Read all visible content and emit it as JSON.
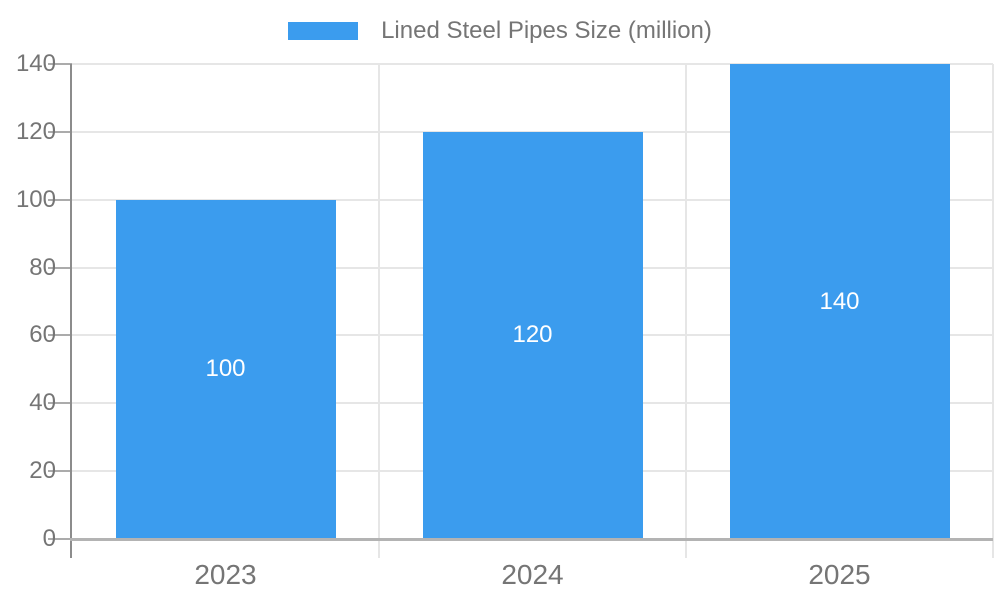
{
  "legend": {
    "label": "Lined Steel Pipes Size (million)"
  },
  "chart_data": {
    "type": "bar",
    "title": "Lined Steel Pipes Size (million)",
    "categories": [
      "2023",
      "2024",
      "2025"
    ],
    "series": [
      {
        "name": "Lined Steel Pipes Size (million)",
        "values": [
          100,
          120,
          140
        ]
      }
    ],
    "bar_value_labels": [
      "100",
      "120",
      "140"
    ],
    "xlabel": "",
    "ylabel": "",
    "ylim": [
      0,
      140
    ],
    "y_ticks": [
      0,
      20,
      40,
      60,
      80,
      100,
      120,
      140
    ],
    "grid": true,
    "legend_position": "top-center",
    "colors": {
      "bar": "#3B9CEE",
      "bar_label_text": "#FFFFFF",
      "axis_label_text": "#757575",
      "legend_text": "#757575",
      "gridline": "#E6E6E6",
      "y_axis_line": "#8C8C8C",
      "x_axis_line": "#B3B3B3",
      "tick": "#ABABAB",
      "background": "#FFFFFF"
    }
  }
}
